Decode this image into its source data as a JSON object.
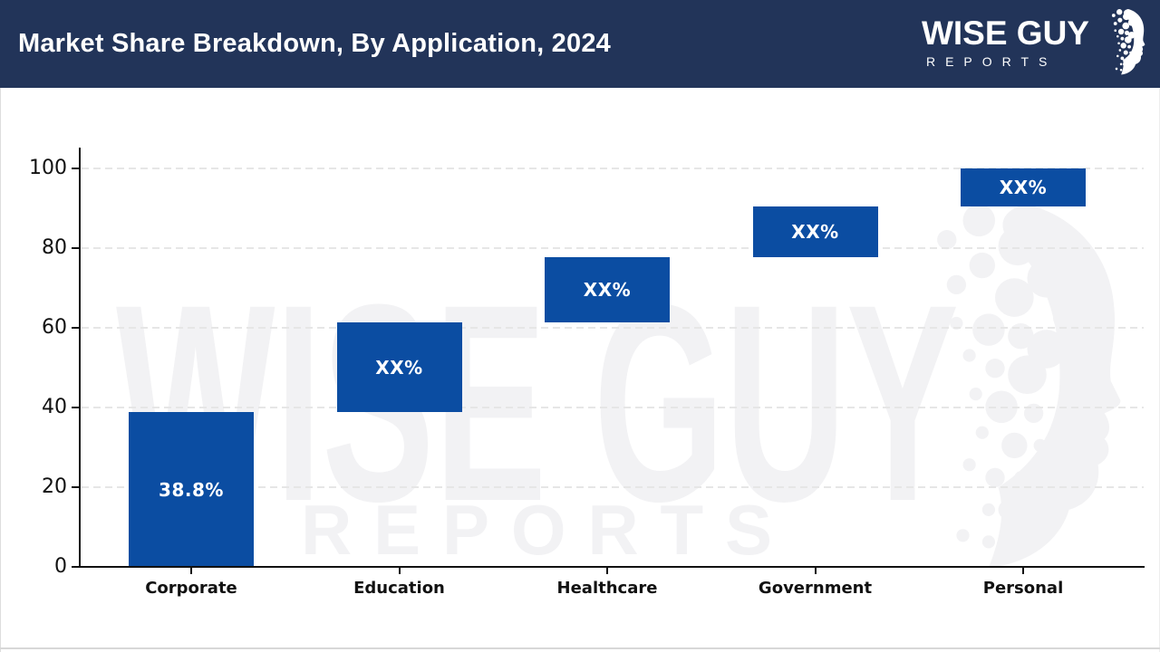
{
  "header": {
    "title": "Market Share Breakdown, By Application, 2024",
    "logo": {
      "name": "WISE GUY",
      "subname": "REPORTS"
    }
  },
  "watermark": {
    "line1": "WISE GUY",
    "line2": "REPORTS"
  },
  "chart_data": {
    "type": "bar",
    "subtype": "waterfall",
    "title": "Market Share Breakdown, By Application, 2024",
    "categories": [
      "Corporate",
      "Education",
      "Healthcare",
      "Government",
      "Personal"
    ],
    "series": [
      {
        "name": "Market share (%)",
        "segments": [
          {
            "category": "Corporate",
            "start": 0,
            "end": 38.8,
            "label": "38.8%"
          },
          {
            "category": "Education",
            "start": 38.8,
            "end": 61.4,
            "label": "XX%"
          },
          {
            "category": "Healthcare",
            "start": 61.4,
            "end": 77.7,
            "label": "XX%"
          },
          {
            "category": "Government",
            "start": 77.7,
            "end": 90.5,
            "label": "XX%"
          },
          {
            "category": "Personal",
            "start": 90.5,
            "end": 100,
            "label": "XX%"
          }
        ]
      }
    ],
    "yticks": [
      0,
      20,
      40,
      60,
      80,
      100
    ],
    "ylim": [
      0,
      105
    ],
    "xlabel": "",
    "ylabel": "",
    "grid": "horizontal-dashed",
    "legend": "none"
  },
  "colors": {
    "header_bg": "#223459",
    "bar": "#0b4da2",
    "bar_label": "#ffffff",
    "axis": "#111111",
    "grid": "#e6e6e6",
    "watermark": "#f2f2f4"
  }
}
